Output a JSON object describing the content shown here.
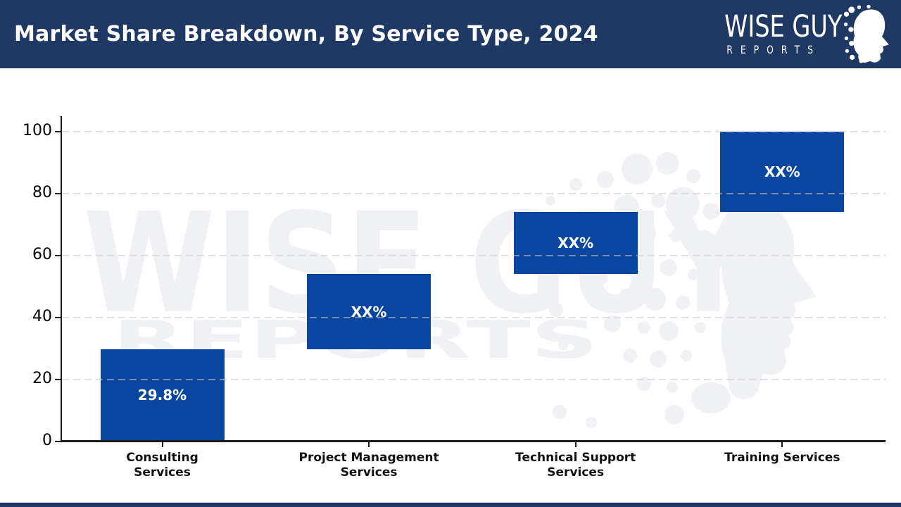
{
  "header": {
    "title": "Market Share Breakdown, By Service Type, 2024",
    "logo": {
      "wordmark": "WISE GUY",
      "subtext": "REPORTS"
    }
  },
  "watermark": {
    "line1": "WISE GUY",
    "line2": "REPORTS"
  },
  "colors": {
    "header_bg": "#1f3864",
    "footer_bg": "#1f3864",
    "bar": "#0a46a0",
    "bar_label": "#ffffff",
    "grid": "#c9c9c9",
    "axis": "#1a1a1a",
    "watermark": "#f0f1f4"
  },
  "chart_data": {
    "type": "bar",
    "subtype": "waterfall",
    "title": "Market Share Breakdown, By Service Type, 2024",
    "unit": "%",
    "ylim": [
      0,
      100
    ],
    "yticks": [
      0,
      20,
      40,
      60,
      80,
      100
    ],
    "grid": "horizontal-dashed",
    "legend": "none",
    "segments": [
      {
        "category": "Consulting\nServices",
        "start": 0,
        "end": 29.8,
        "label": "29.8%"
      },
      {
        "category": "Project Management\nServices",
        "start": 29.8,
        "end": 54,
        "label": "XX%"
      },
      {
        "category": "Technical Support\nServices",
        "start": 54,
        "end": 74,
        "label": "XX%"
      },
      {
        "category": "Training Services",
        "start": 74,
        "end": 100,
        "label": "XX%"
      }
    ]
  }
}
